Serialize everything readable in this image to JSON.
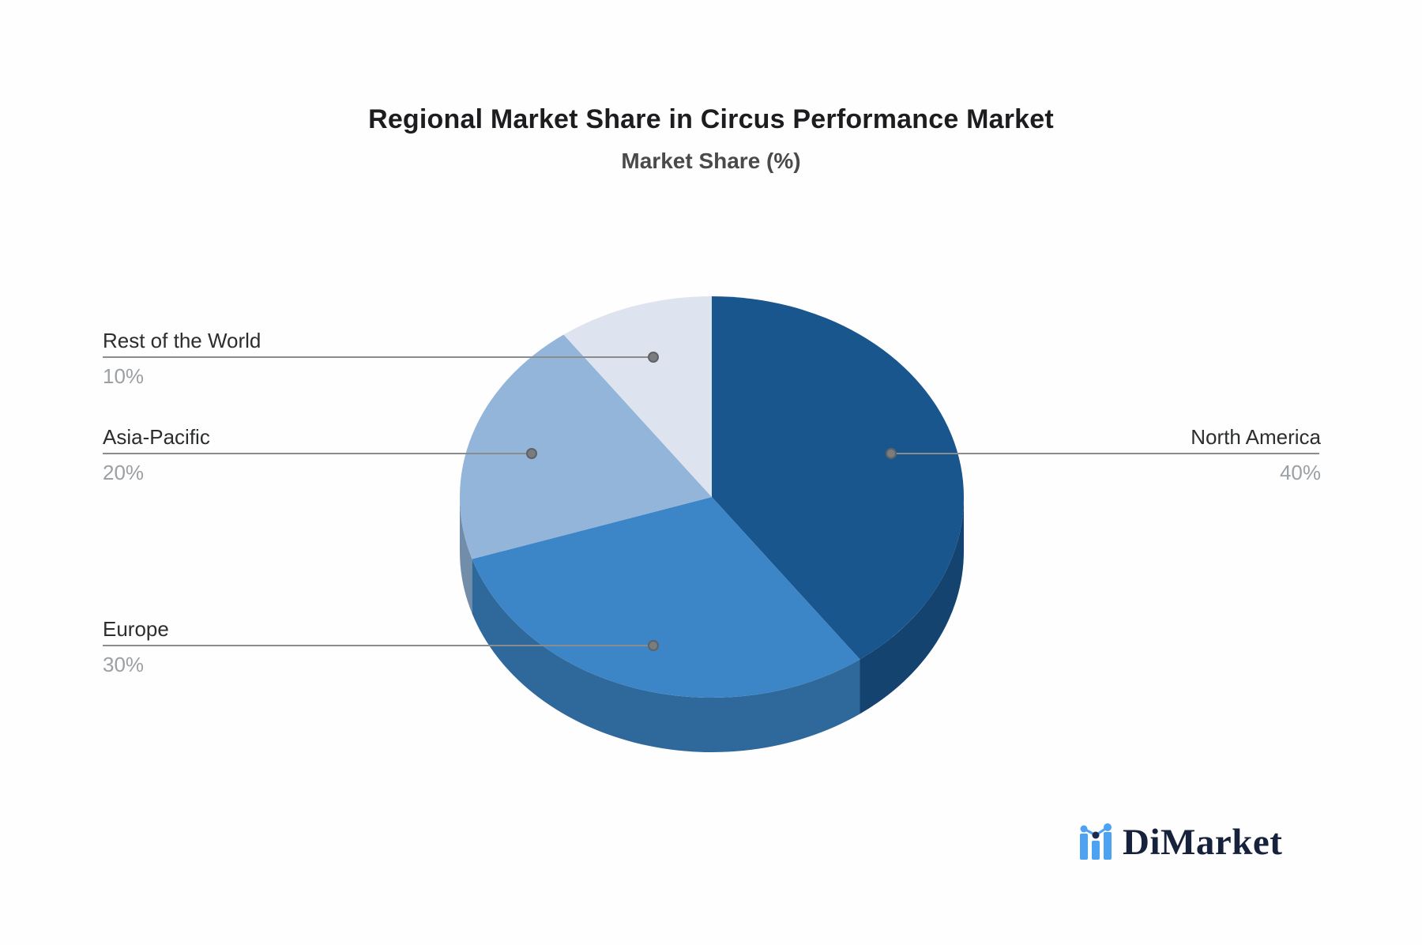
{
  "chart_data": {
    "type": "pie",
    "style": "3d-pie",
    "title": "Regional Market Share in Circus Performance Market",
    "subtitle": "Market Share (%)",
    "unit": "%",
    "start_angle_deg": -90,
    "direction": "clockwise",
    "legend_position": "none (leader-line labels)",
    "slices": [
      {
        "label": "North America",
        "value": 40,
        "display": "40%",
        "color": "#1A568E",
        "label_side": "right"
      },
      {
        "label": "Europe",
        "value": 30,
        "display": "30%",
        "color": "#3C86C8",
        "label_side": "left"
      },
      {
        "label": "Asia-Pacific",
        "value": 20,
        "display": "20%",
        "color": "#92B5D9",
        "label_side": "left"
      },
      {
        "label": "Rest of the World",
        "value": 10,
        "display": "10%",
        "color": "#DEE4EF",
        "label_side": "left"
      }
    ],
    "label_name_color": "#2B2D2F",
    "label_value_color": "#9BA0A4",
    "leader_line_color": "#8A8D8F",
    "leader_dot_color": "#7A7D80"
  },
  "branding": {
    "logo_text": "DiMarket",
    "logo_icon": "bar-line-chart-icon",
    "icon_color": "#4DA2F2",
    "icon_dot_dark": "#1C2B4D",
    "text_color": "#16213C"
  }
}
